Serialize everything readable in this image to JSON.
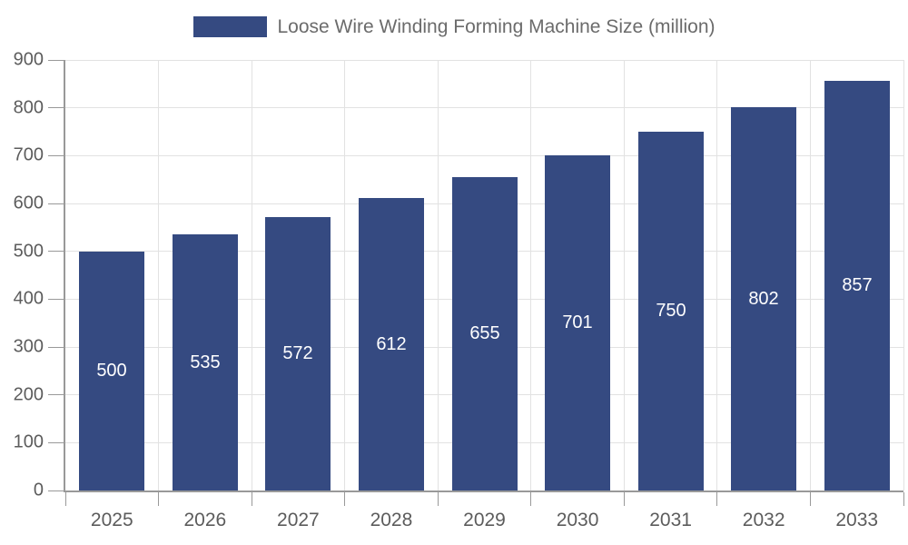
{
  "legend": {
    "label": "Loose Wire Winding Forming Machine Size (million)"
  },
  "chart_data": {
    "type": "bar",
    "title": "",
    "xlabel": "",
    "ylabel": "",
    "categories": [
      "2025",
      "2026",
      "2027",
      "2028",
      "2029",
      "2030",
      "2031",
      "2032",
      "2033"
    ],
    "values": [
      500,
      535,
      572,
      612,
      655,
      701,
      750,
      802,
      857
    ],
    "series_name": "Loose Wire Winding Forming Machine Size (million)",
    "ylim": [
      0,
      900
    ],
    "yticks": [
      0,
      100,
      200,
      300,
      400,
      500,
      600,
      700,
      800,
      900
    ],
    "grid": true,
    "legend_position": "top",
    "colors": {
      "bar": "#354a81",
      "bar_label": "#ffffff",
      "axis_text": "#5c5c5c",
      "legend_text": "#6b6b6b",
      "gridline": "#e2e2e2",
      "axis_line": "#999999",
      "background": "#ffffff"
    }
  }
}
